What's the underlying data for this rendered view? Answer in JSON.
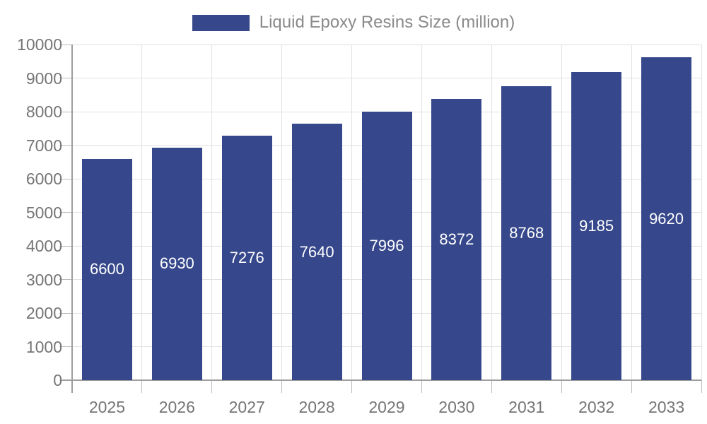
{
  "chart_data": {
    "type": "bar",
    "series_name": "Liquid Epoxy Resins Size (million)",
    "categories": [
      "2025",
      "2026",
      "2027",
      "2028",
      "2029",
      "2030",
      "2031",
      "2032",
      "2033"
    ],
    "values": [
      6600,
      6930,
      7276,
      7640,
      7996,
      8372,
      8768,
      9185,
      9620
    ],
    "bar_value_labels": [
      "6600",
      "6930",
      "7276",
      "7640",
      "7996",
      "8372",
      "8768",
      "9185",
      "9620"
    ],
    "y_ticks": [
      0,
      1000,
      2000,
      3000,
      4000,
      5000,
      6000,
      7000,
      8000,
      9000,
      10000
    ],
    "ylim": [
      0,
      10000
    ],
    "grid": true,
    "legend_position": "top-center",
    "colors": {
      "bar": "#36488b",
      "bar_label": "#ffffff",
      "axis_label": "#757575",
      "legend_text": "#8a8a8a",
      "gridline": "#e2e2e6",
      "axis_line": "#9e9e9e",
      "tick": "#bbbbbb"
    }
  }
}
